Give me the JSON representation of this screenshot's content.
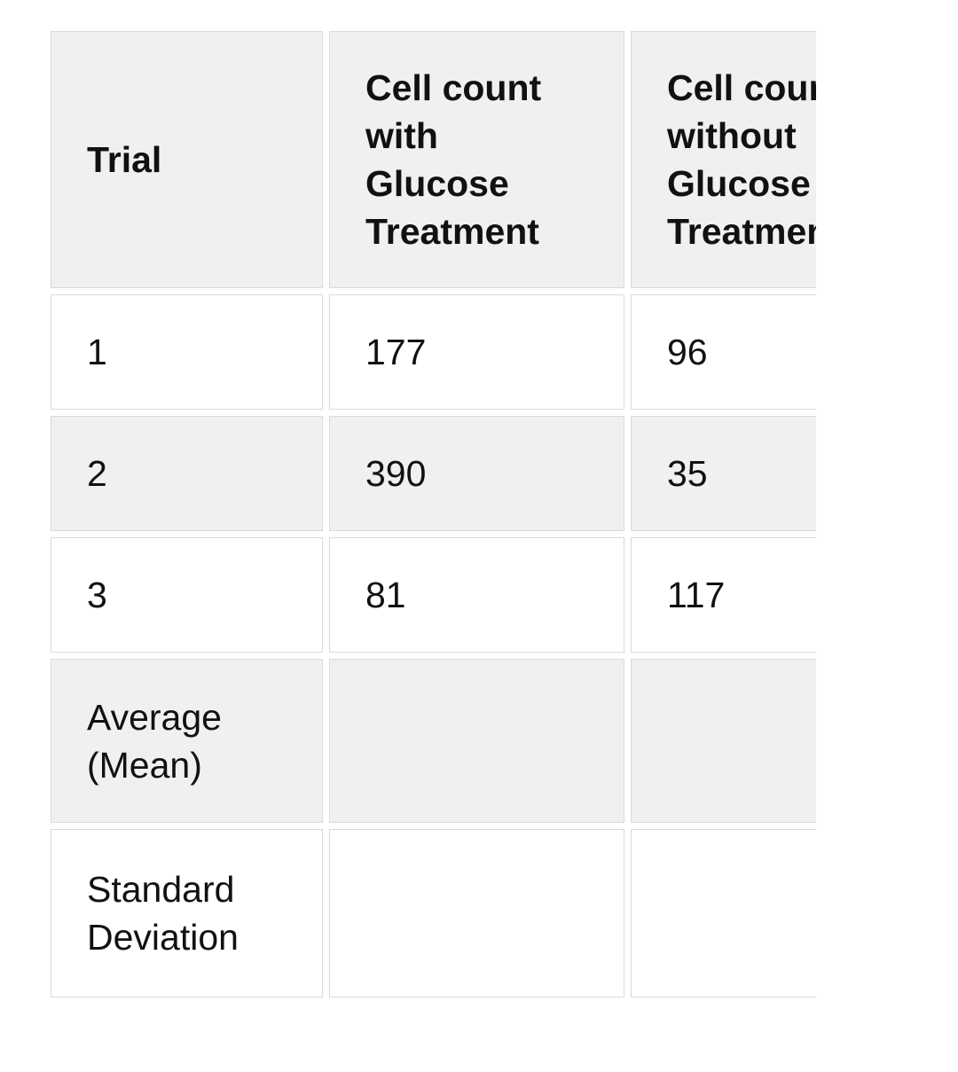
{
  "chart_data": {
    "type": "table",
    "columns": [
      "Trial",
      "Cell count with Glucose Treatment",
      "Cell count without Glucose Treatment"
    ],
    "rows": [
      [
        "1",
        "177",
        "96"
      ],
      [
        "2",
        "390",
        "35"
      ],
      [
        "3",
        "81",
        "117"
      ],
      [
        "Average (Mean)",
        "",
        ""
      ],
      [
        "Standard Deviation",
        "",
        ""
      ]
    ]
  },
  "display": {
    "headers": [
      "Trial",
      "Cell count\nwith\nGlucose\nTreatment",
      "Cell count\nwithout\nGlucose\nTreatment"
    ],
    "rows": [
      [
        "1",
        "177",
        "96"
      ],
      [
        "2",
        "390",
        "35"
      ],
      [
        "3",
        "81",
        "117"
      ],
      [
        "Average\n(Mean)",
        "",
        ""
      ],
      [
        "Standard\nDeviation",
        "",
        ""
      ]
    ]
  },
  "colors": {
    "header_bg": "#f1f0ee",
    "row_bg": "#ffffff",
    "row_alt_bg": "#f1f0ee",
    "cell_border": "#dbdad8",
    "text": "#111111",
    "page_bg": "#ffffff"
  }
}
